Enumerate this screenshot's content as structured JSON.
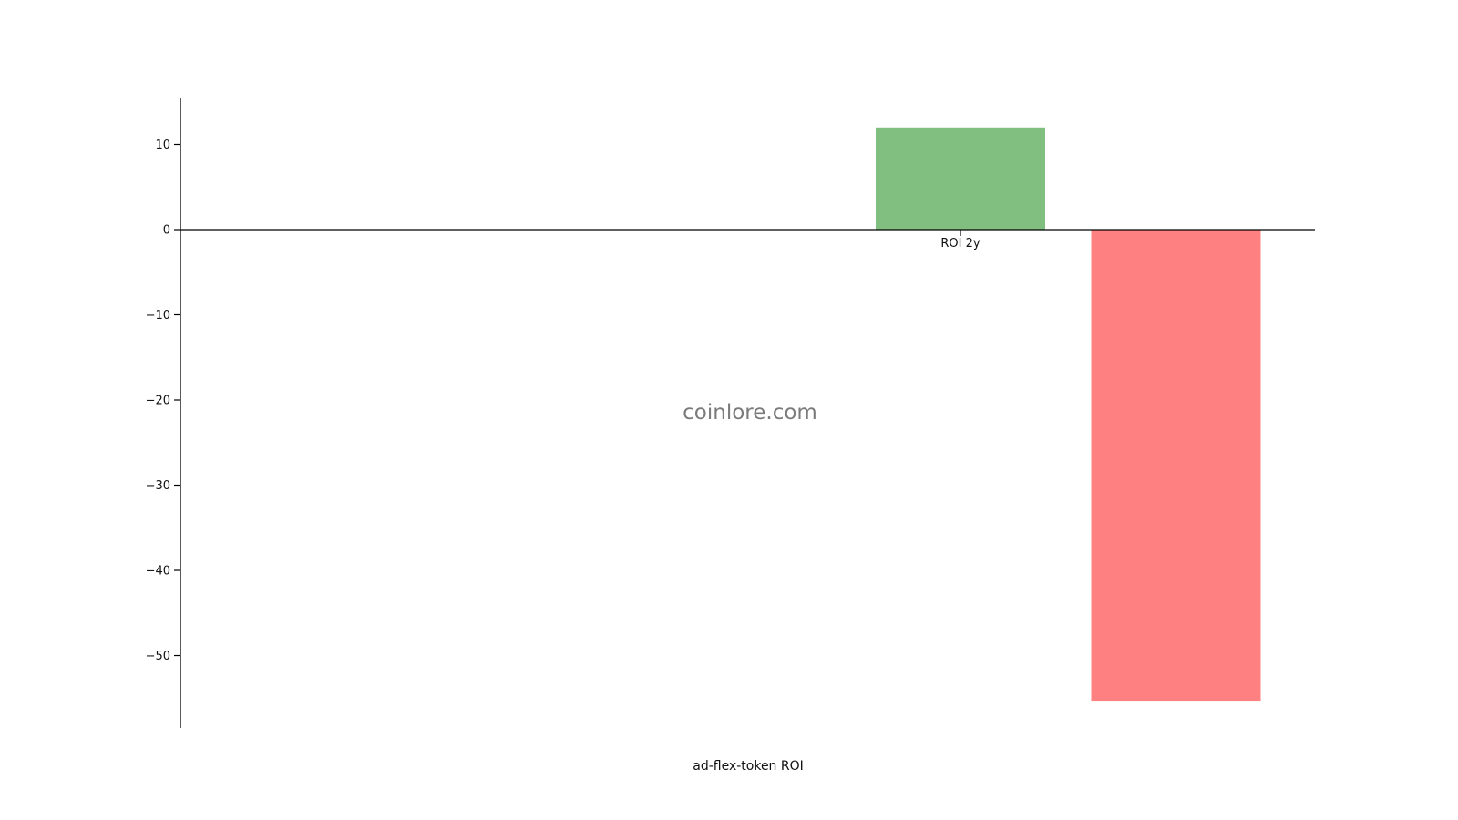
{
  "page": {
    "background_color": "#ffffff",
    "watermark_text": "coinlore.com",
    "watermark_color": "#7b7b7b"
  },
  "chart_data": {
    "type": "bar",
    "title": "",
    "xlabel": "ad-flex-token ROI",
    "ylabel": "",
    "categories": [
      "ROI 2y",
      ""
    ],
    "values": [
      12,
      -55.3
    ],
    "bar_colors": [
      "#80bf80",
      "#ff8080"
    ],
    "positive_color": "#80bf80",
    "negative_color": "#ff8080",
    "yticks": [
      10,
      0,
      -10,
      -20,
      -30,
      -40,
      -50
    ],
    "ytick_labels": [
      "10",
      "0",
      "−10",
      "−20",
      "−30",
      "−40",
      "−50"
    ],
    "ylim": [
      -58.5,
      15.4
    ],
    "grid": false,
    "legend": "none",
    "axis_color": "#000000",
    "tick_label_color": "#111111",
    "watermark": "coinlore.com"
  }
}
